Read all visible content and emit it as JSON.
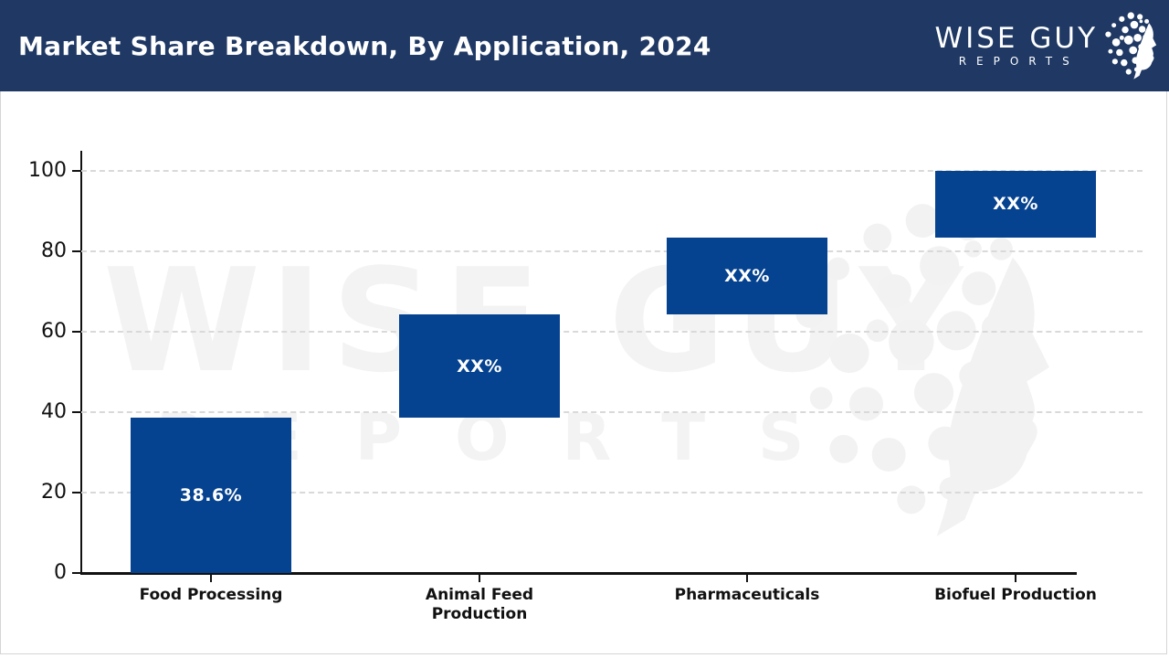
{
  "header": {
    "title": "Market Share Breakdown, By Application, 2024",
    "logo": {
      "wordmark": "WISE GUY",
      "subtext": "REPORTS",
      "face_icon": "dotted-head-profile"
    }
  },
  "watermark": {
    "wordmark": "WISE GUY",
    "subtext": "REPORTS",
    "face_icon": "dotted-head-profile"
  },
  "colors": {
    "header_bg": "#1f3864",
    "bar": "#05428f",
    "bar_label": "#ffffff",
    "gridline": "#d9d9d9",
    "axis": "#111111",
    "watermark": "#f3f3f3"
  },
  "chart_data": {
    "type": "bar",
    "subtype": "waterfall",
    "title": "Market Share Breakdown, By Application, 2024",
    "xlabel": "",
    "ylabel": "",
    "ylim": [
      0,
      100
    ],
    "yticks": [
      0,
      20,
      40,
      60,
      80,
      100
    ],
    "grid": "horizontal dashed",
    "legend": "none",
    "categories": [
      "Food Processing",
      "Animal Feed\nProduction",
      "Pharmaceuticals",
      "Biofuel Production"
    ],
    "segments": [
      {
        "category": "Food Processing",
        "start": 0,
        "end": 38.6,
        "value": 38.6,
        "label": "38.6%"
      },
      {
        "category": "Animal Feed\nProduction",
        "start": 38.6,
        "end": 64.3,
        "value": 25.7,
        "label": "XX%"
      },
      {
        "category": "Pharmaceuticals",
        "start": 64.3,
        "end": 83.5,
        "value": 19.2,
        "label": "XX%"
      },
      {
        "category": "Biofuel Production",
        "start": 83.5,
        "end": 100,
        "value": 16.5,
        "label": "XX%"
      }
    ]
  }
}
